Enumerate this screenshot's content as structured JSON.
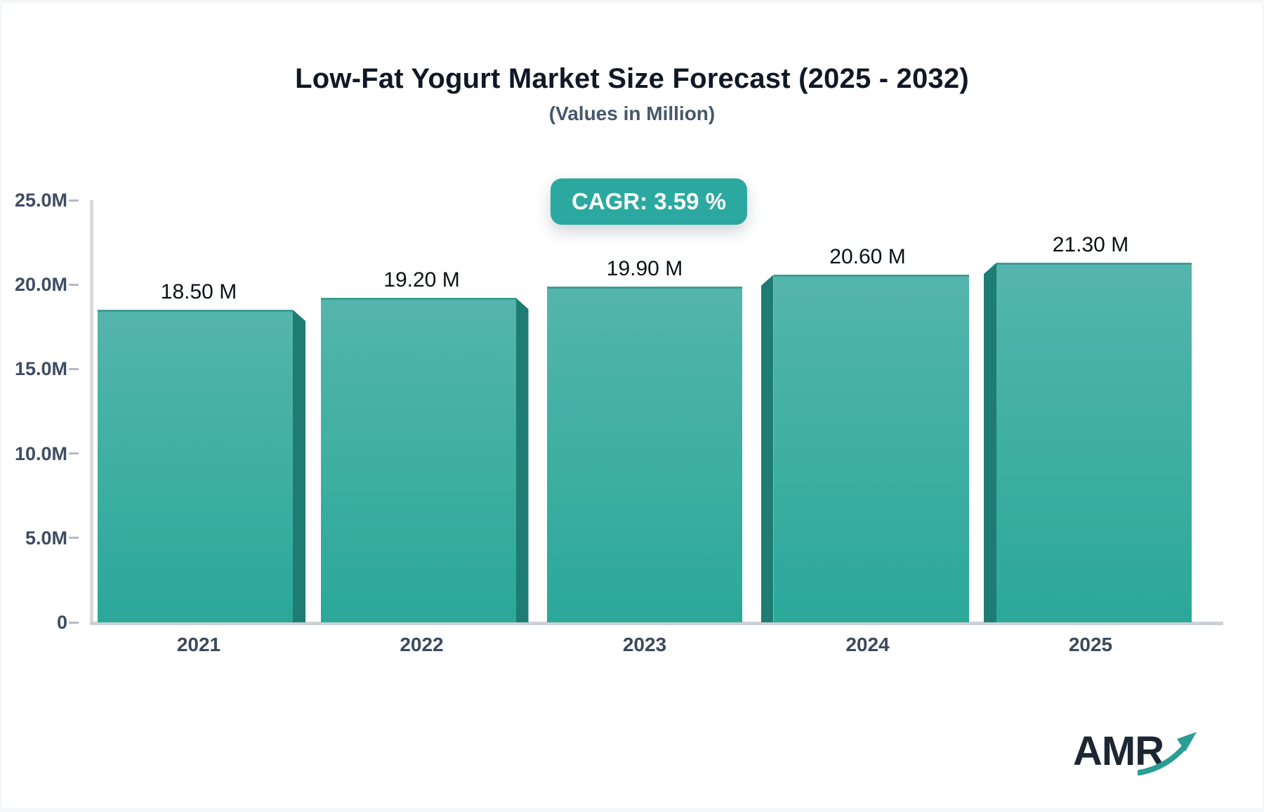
{
  "page": {
    "background": "#f4f6f8",
    "card_background": "#ffffff"
  },
  "header": {
    "title": "Low-Fat Yogurt Market Size Forecast (2025 - 2032)",
    "subtitle": "(Values in Million)"
  },
  "cagr_badge": {
    "label": "CAGR: 3.59 %",
    "background": "#2ba9a0",
    "text_color": "#ffffff"
  },
  "chart_data": {
    "type": "bar",
    "title": "Low-Fat Yogurt Market Size Forecast (2025 - 2032)",
    "subtitle": "(Values in Million)",
    "categories": [
      "2021",
      "2022",
      "2023",
      "2024",
      "2025"
    ],
    "values": [
      18.5,
      19.2,
      19.9,
      20.6,
      21.3
    ],
    "value_labels": [
      "18.50 M",
      "19.20 M",
      "19.90 M",
      "20.60 M",
      "21.30 M"
    ],
    "ylim": [
      0,
      25
    ],
    "ytick_values": [
      0,
      5,
      10,
      15,
      20,
      25
    ],
    "ytick_labels": [
      "0",
      "5.0M",
      "10.0M",
      "15.0M",
      "20.0M",
      "25.0M"
    ],
    "grid": false,
    "legend": "none",
    "bar_style": "3d-perspective",
    "bar_side_faces": [
      "right",
      "right",
      "none",
      "left",
      "left"
    ],
    "colors": {
      "bar_gradient_top": "#54b5ac",
      "bar_gradient_bottom": "#2aa89a",
      "bar_side_face": "#1e7c73",
      "bar_top_edge": "#3d9c93",
      "axis_line": "#ccd1d7",
      "tick_text": "#3e4c63",
      "value_label_text": "#0c1116"
    }
  },
  "logo": {
    "text": "AMR",
    "text_color": "#1c2733",
    "arrow_color": "#2a9d94",
    "arrow_icon": "growth-arrow-icon"
  }
}
